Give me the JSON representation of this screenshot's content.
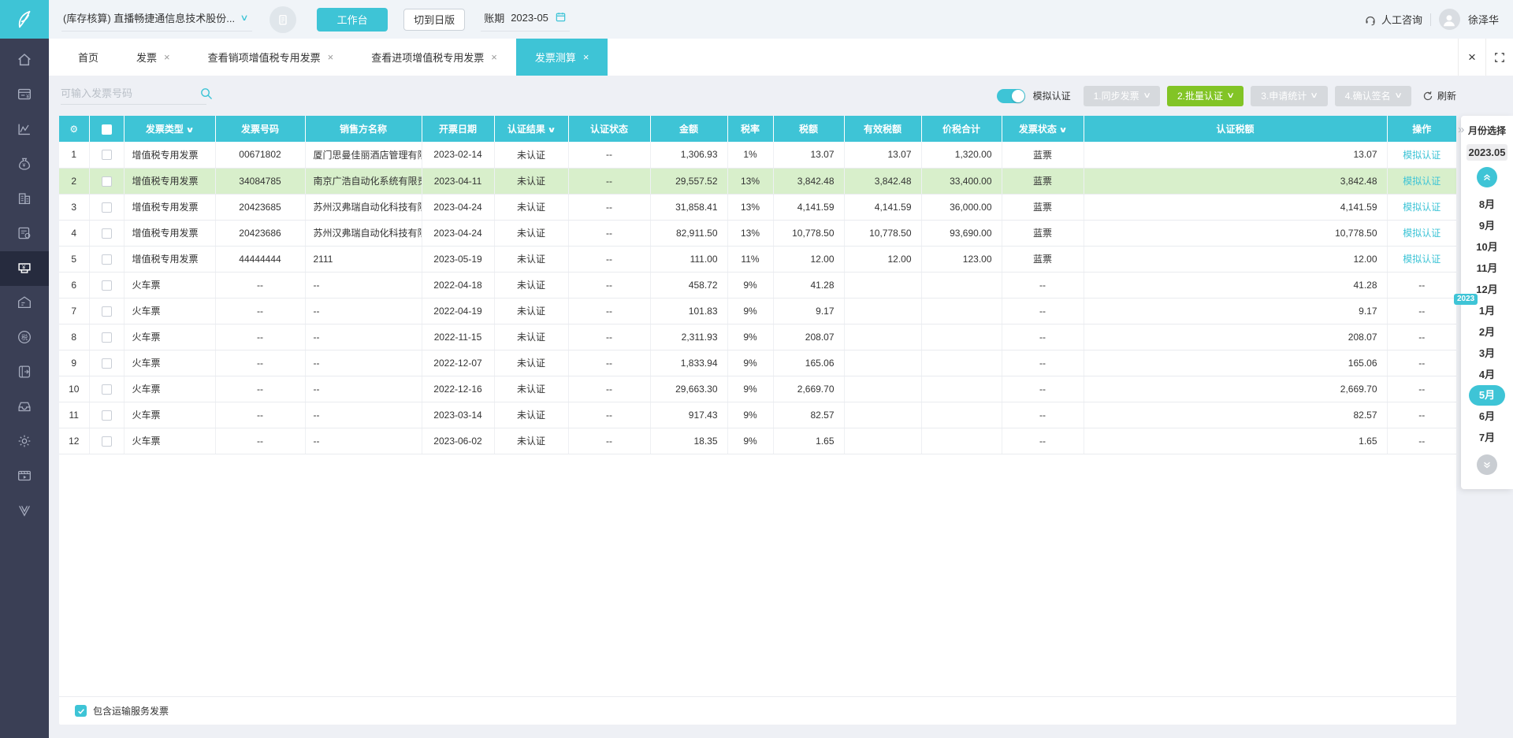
{
  "colors": {
    "accent": "#3EC4D6",
    "green_button": "#82C426",
    "disabled_button": "#D6D9DD",
    "row_highlight": "#D8EFCB",
    "sidebar_bg": "#3A3F55",
    "sidebar_active_bg": "#262B3E",
    "table_header_bg": "#3EC4D6",
    "link": "#3EC4D6",
    "page_bg": "#EEF0F5",
    "topbar_bg": "#F0F4F8"
  },
  "icons": {
    "close": "×",
    "chevron_down": "∨",
    "gear": "⚙",
    "collapse_right": "»",
    "check": "✓"
  },
  "topbar": {
    "company_selector": "(库存核算) 直播畅捷通信息技术股份...",
    "workbench_button": "工作台",
    "switch_version_button": "切到日版",
    "period_label": "账期",
    "period_value": "2023-05",
    "support_label": "人工咨询",
    "user_name": "徐泽华"
  },
  "sidebar": {
    "items": [
      {
        "name": "home"
      },
      {
        "name": "invoice-list"
      },
      {
        "name": "chart"
      },
      {
        "name": "money-bag"
      },
      {
        "name": "company"
      },
      {
        "name": "report"
      },
      {
        "name": "invoice-print",
        "active": true
      },
      {
        "name": "warehouse"
      },
      {
        "name": "tax"
      },
      {
        "name": "ledger"
      },
      {
        "name": "inbox"
      },
      {
        "name": "settings"
      },
      {
        "name": "video"
      },
      {
        "name": "v-logo"
      }
    ]
  },
  "tabs": [
    {
      "label": "首页",
      "closable": false,
      "active": false
    },
    {
      "label": "发票",
      "closable": true,
      "active": false
    },
    {
      "label": "查看销项增值税专用发票",
      "closable": true,
      "active": false
    },
    {
      "label": "查看进项增值税专用发票",
      "closable": true,
      "active": false
    },
    {
      "label": "发票测算",
      "closable": true,
      "active": true
    }
  ],
  "toolbar": {
    "search_placeholder": "可输入发票号码",
    "simulate_toggle_label": "模拟认证",
    "simulate_toggle_on": true,
    "action_buttons": [
      {
        "label": "1.同步发票",
        "enabled": false,
        "dropdown": true
      },
      {
        "label": "2.批量认证",
        "enabled": true,
        "dropdown": true
      },
      {
        "label": "3.申请统计",
        "enabled": false,
        "dropdown": true
      },
      {
        "label": "4.确认签名",
        "enabled": false,
        "dropdown": true
      }
    ],
    "refresh_label": "刷新"
  },
  "table": {
    "columns": [
      {
        "label": "发票类型",
        "sortable": true
      },
      {
        "label": "发票号码",
        "sortable": false
      },
      {
        "label": "销售方名称",
        "sortable": false
      },
      {
        "label": "开票日期",
        "sortable": false
      },
      {
        "label": "认证结果",
        "sortable": true
      },
      {
        "label": "认证状态",
        "sortable": false
      },
      {
        "label": "金额",
        "sortable": false
      },
      {
        "label": "税率",
        "sortable": false
      },
      {
        "label": "税额",
        "sortable": false
      },
      {
        "label": "有效税额",
        "sortable": false
      },
      {
        "label": "价税合计",
        "sortable": false
      },
      {
        "label": "发票状态",
        "sortable": true
      },
      {
        "label": "认证税额",
        "sortable": false
      },
      {
        "label": "操作",
        "sortable": false
      }
    ],
    "rows": [
      {
        "index": 1,
        "highlight": false,
        "cells": [
          "增值税专用发票",
          "00671802",
          "厦门思曼佳丽酒店管理有限",
          "2023-02-14",
          "未认证",
          "--",
          "1,306.93",
          "1%",
          "13.07",
          "13.07",
          "1,320.00",
          "蓝票",
          "13.07",
          "模拟认证"
        ]
      },
      {
        "index": 2,
        "highlight": true,
        "cells": [
          "增值税专用发票",
          "34084785",
          "南京广浩自动化系统有限责",
          "2023-04-11",
          "未认证",
          "--",
          "29,557.52",
          "13%",
          "3,842.48",
          "3,842.48",
          "33,400.00",
          "蓝票",
          "3,842.48",
          "模拟认证"
        ]
      },
      {
        "index": 3,
        "highlight": false,
        "cells": [
          "增值税专用发票",
          "20423685",
          "苏州汉弗瑞自动化科技有限",
          "2023-04-24",
          "未认证",
          "--",
          "31,858.41",
          "13%",
          "4,141.59",
          "4,141.59",
          "36,000.00",
          "蓝票",
          "4,141.59",
          "模拟认证"
        ]
      },
      {
        "index": 4,
        "highlight": false,
        "cells": [
          "增值税专用发票",
          "20423686",
          "苏州汉弗瑞自动化科技有限",
          "2023-04-24",
          "未认证",
          "--",
          "82,911.50",
          "13%",
          "10,778.50",
          "10,778.50",
          "93,690.00",
          "蓝票",
          "10,778.50",
          "模拟认证"
        ]
      },
      {
        "index": 5,
        "highlight": false,
        "cells": [
          "增值税专用发票",
          "44444444",
          "2111",
          "2023-05-19",
          "未认证",
          "--",
          "111.00",
          "11%",
          "12.00",
          "12.00",
          "123.00",
          "蓝票",
          "12.00",
          "模拟认证"
        ]
      },
      {
        "index": 6,
        "highlight": false,
        "cells": [
          "火车票",
          "--",
          "--",
          "2022-04-18",
          "未认证",
          "--",
          "458.72",
          "9%",
          "41.28",
          "",
          "",
          "--",
          "41.28",
          "--"
        ]
      },
      {
        "index": 7,
        "highlight": false,
        "cells": [
          "火车票",
          "--",
          "--",
          "2022-04-19",
          "未认证",
          "--",
          "101.83",
          "9%",
          "9.17",
          "",
          "",
          "--",
          "9.17",
          "--"
        ]
      },
      {
        "index": 8,
        "highlight": false,
        "cells": [
          "火车票",
          "--",
          "--",
          "2022-11-15",
          "未认证",
          "--",
          "2,311.93",
          "9%",
          "208.07",
          "",
          "",
          "--",
          "208.07",
          "--"
        ]
      },
      {
        "index": 9,
        "highlight": false,
        "cells": [
          "火车票",
          "--",
          "--",
          "2022-12-07",
          "未认证",
          "--",
          "1,833.94",
          "9%",
          "165.06",
          "",
          "",
          "--",
          "165.06",
          "--"
        ]
      },
      {
        "index": 10,
        "highlight": false,
        "cells": [
          "火车票",
          "--",
          "--",
          "2022-12-16",
          "未认证",
          "--",
          "29,663.30",
          "9%",
          "2,669.70",
          "",
          "",
          "--",
          "2,669.70",
          "--"
        ]
      },
      {
        "index": 11,
        "highlight": false,
        "cells": [
          "火车票",
          "--",
          "--",
          "2023-03-14",
          "未认证",
          "--",
          "917.43",
          "9%",
          "82.57",
          "",
          "",
          "--",
          "82.57",
          "--"
        ]
      },
      {
        "index": 12,
        "highlight": false,
        "cells": [
          "火车票",
          "--",
          "--",
          "2023-06-02",
          "未认证",
          "--",
          "18.35",
          "9%",
          "1.65",
          "",
          "",
          "--",
          "1.65",
          "--"
        ]
      }
    ]
  },
  "month_panel": {
    "title": "月份选择",
    "current_period": "2023.05",
    "year_badge": "2023",
    "months": [
      {
        "label": "8月"
      },
      {
        "label": "9月"
      },
      {
        "label": "10月"
      },
      {
        "label": "11月"
      },
      {
        "label": "12月"
      },
      {
        "label": "1月",
        "year_badge": true
      },
      {
        "label": "2月"
      },
      {
        "label": "3月"
      },
      {
        "label": "4月"
      },
      {
        "label": "5月",
        "selected": true
      },
      {
        "label": "6月"
      },
      {
        "label": "7月"
      }
    ]
  },
  "footer": {
    "transport_checkbox_label": "包含运输服务发票",
    "checked": true
  }
}
